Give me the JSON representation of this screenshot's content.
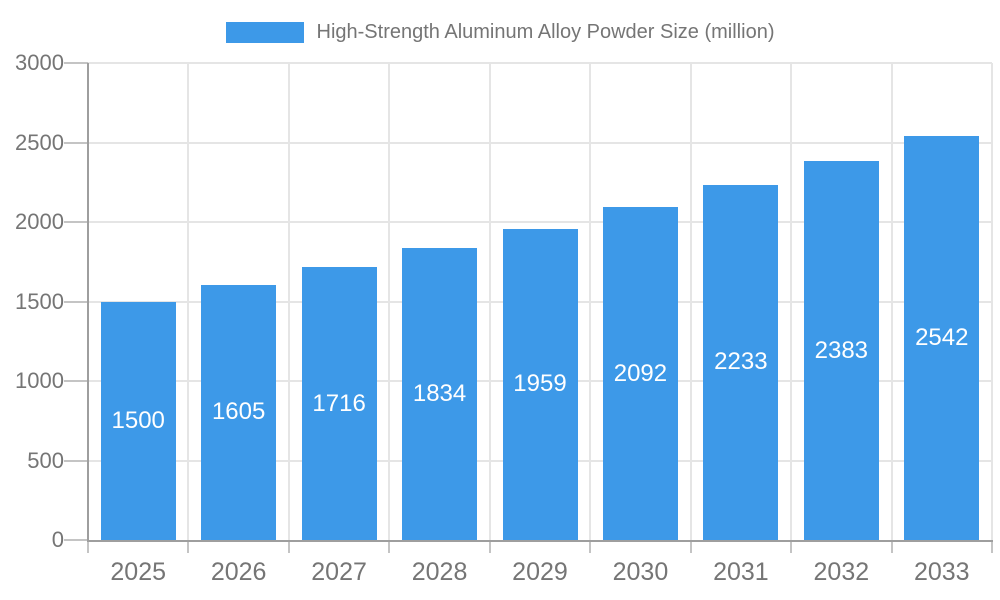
{
  "page": {
    "background": "#ffffff"
  },
  "chart_data": {
    "type": "bar",
    "title": "High-Strength Aluminum Alloy Powder Size (million)",
    "legend_position": "top",
    "categories": [
      "2025",
      "2026",
      "2027",
      "2028",
      "2029",
      "2030",
      "2031",
      "2032",
      "2033"
    ],
    "values": [
      1500,
      1605,
      1716,
      1834,
      1959,
      2092,
      2233,
      2383,
      2542
    ],
    "xlabel": "",
    "ylabel": "",
    "ylim": [
      0,
      3000
    ],
    "yticks": [
      0,
      500,
      1000,
      1500,
      2000,
      2500,
      3000
    ],
    "grid": true,
    "value_label_position": "inside-center",
    "colors": {
      "bar": "#3D99E8",
      "value_label": "#FFFFFF",
      "gridline": "#E5E5E5",
      "axis_line": "#9E9E9E",
      "tick": "#C4C4C4",
      "text": "#757575"
    }
  }
}
